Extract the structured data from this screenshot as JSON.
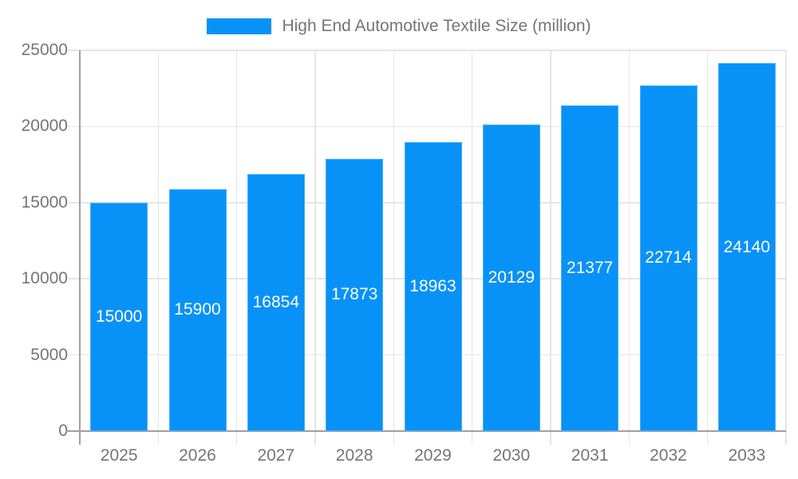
{
  "legend": {
    "label": "High End Automotive Textile Size (million)"
  },
  "chart_data": {
    "type": "bar",
    "title": "High End Automotive Textile Size (million)",
    "categories": [
      "2025",
      "2026",
      "2027",
      "2028",
      "2029",
      "2030",
      "2031",
      "2032",
      "2033"
    ],
    "values": [
      15000,
      15900,
      16854,
      17873,
      18963,
      20129,
      21377,
      22714,
      24140
    ],
    "xlabel": "",
    "ylabel": "",
    "ylim": [
      0,
      25000
    ],
    "yticks": [
      0,
      5000,
      10000,
      15000,
      20000,
      25000
    ],
    "grid": true,
    "legend_position": "top",
    "bar_color": "#0892f8",
    "value_label_color": "#ffffff",
    "axis_text_color": "#757575",
    "grid_color": "#e6e6e6",
    "axis_line_color": "#a0a0a0"
  }
}
